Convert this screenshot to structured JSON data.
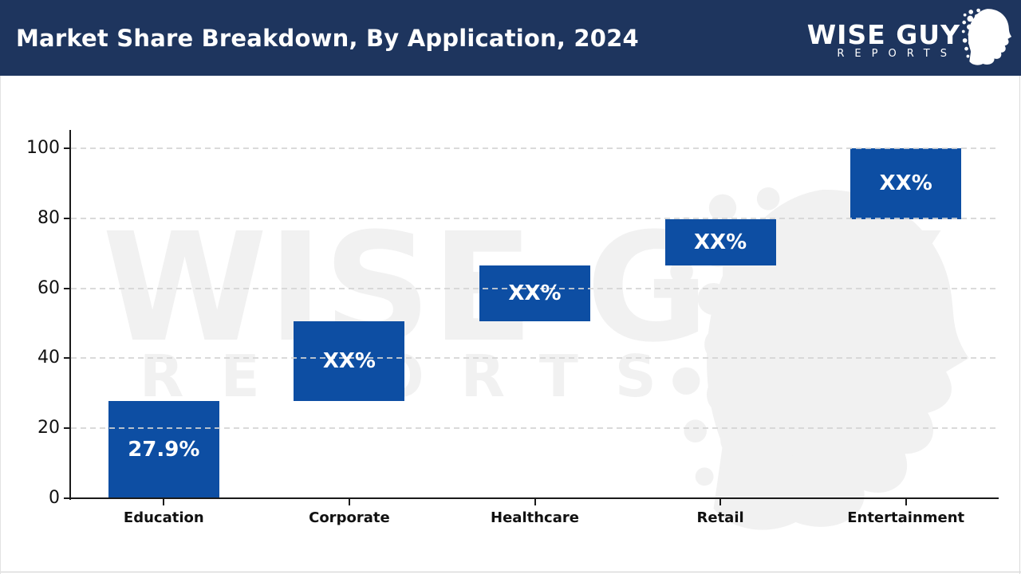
{
  "header": {
    "title": "Market Share Breakdown, By Application, 2024",
    "logo": {
      "name": "WISE GUY",
      "sub": "REPORTS",
      "head_icon": "dotted-face-profile"
    }
  },
  "watermark": {
    "name": "WISE GUY",
    "sub": "REPORTS"
  },
  "colors": {
    "header_bg": "#1e355e",
    "bar": "#0d4ea3",
    "grid": "#d4d4d4",
    "axis": "#1a1a1a",
    "bar_label": "#ffffff",
    "watermark": "#f1f1f1"
  },
  "chart_data": {
    "type": "bar",
    "variant": "waterfall-floating-bars",
    "title": "Market Share Breakdown, By Application, 2024",
    "categories": [
      "Education",
      "Corporate",
      "Healthcare",
      "Retail",
      "Entertainment"
    ],
    "bar_labels": [
      "27.9%",
      "XX%",
      "XX%",
      "XX%",
      "XX%"
    ],
    "segments": [
      [
        0,
        27.9
      ],
      [
        27.9,
        50.6
      ],
      [
        50.6,
        66.6
      ],
      [
        66.6,
        79.8
      ],
      [
        79.8,
        100
      ]
    ],
    "values": [
      27.9,
      22.7,
      16.0,
      13.2,
      20.2
    ],
    "xlabel": "",
    "ylabel": "",
    "ylim": [
      0,
      100
    ],
    "yticks": [
      0,
      20,
      40,
      60,
      80,
      100
    ],
    "grid": "horizontal-dashed",
    "grid_above_bars": true,
    "legend": "none"
  }
}
